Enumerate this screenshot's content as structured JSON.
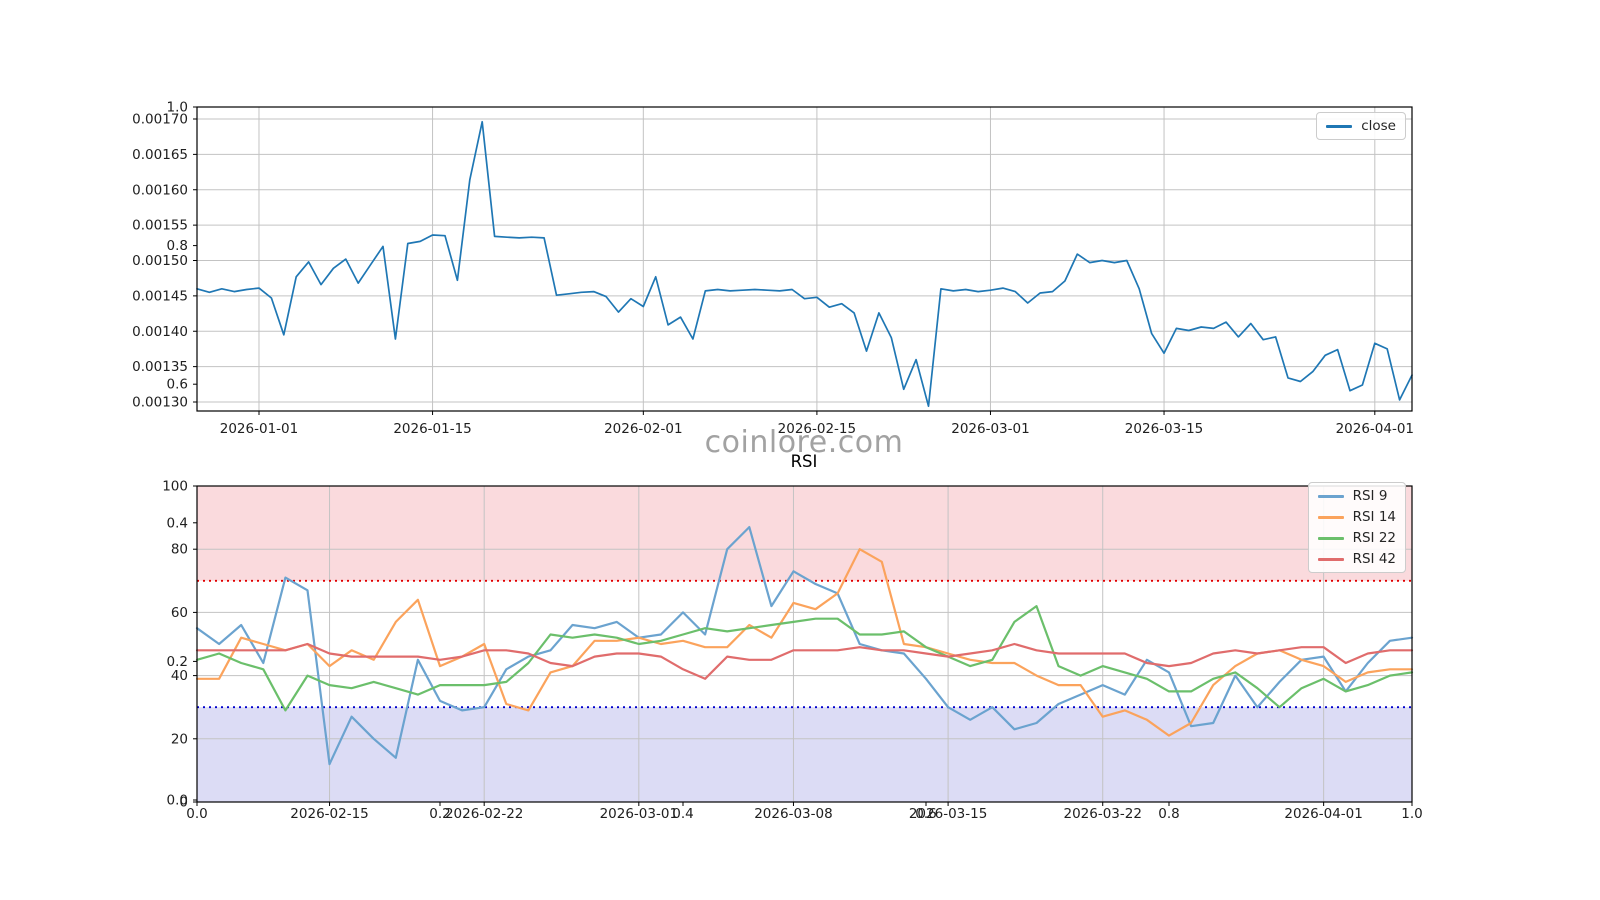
{
  "watermark": "coinlore.com",
  "overlay_axis": {
    "x_tick_labels": [
      "0.0",
      "0.2",
      "0.4",
      "0.6",
      "0.8",
      "1.0"
    ],
    "y_tick_labels": [
      "1.0",
      "0.8",
      "0.6",
      "0.4",
      "0.2",
      "0.0"
    ]
  },
  "chart_data": [
    {
      "type": "line",
      "title": "",
      "legend_position": "upper right",
      "grid": true,
      "x_range": [
        "2025-12-27",
        "2026-04-04"
      ],
      "x_tick_labels": [
        "2026-01-01",
        "2026-01-15",
        "2026-02-01",
        "2026-02-15",
        "2026-03-01",
        "2026-03-15",
        "2026-04-01"
      ],
      "x_tick_day_offsets": [
        5,
        19,
        36,
        50,
        64,
        78,
        95
      ],
      "y_tick_labels": [
        "0.00170",
        "0.00165",
        "0.00160",
        "0.00155",
        "0.00150",
        "0.00145",
        "0.00140",
        "0.00135",
        "0.00130"
      ],
      "y_tick_values": [
        170,
        165,
        160,
        155,
        150,
        145,
        140,
        135,
        130
      ],
      "ylim": [
        128.7,
        170.2
      ],
      "value_scale": 1e-05,
      "series": [
        {
          "name": "close",
          "color": "#1f77b4",
          "width": 1.7,
          "values": [
            146.0,
            145.5,
            146.0,
            145.6,
            145.9,
            146.1,
            144.7,
            139.5,
            147.7,
            149.8,
            146.6,
            148.9,
            150.2,
            146.8,
            149.4,
            152.0,
            138.9,
            152.4,
            152.7,
            153.6,
            153.5,
            147.2,
            161.4,
            169.6,
            153.4,
            153.3,
            153.2,
            153.3,
            153.2,
            145.1,
            145.3,
            145.5,
            145.6,
            144.9,
            142.7,
            144.6,
            143.5,
            147.7,
            140.9,
            142.0,
            138.9,
            145.7,
            145.9,
            145.7,
            145.8,
            145.9,
            145.8,
            145.7,
            145.9,
            144.6,
            144.8,
            143.4,
            143.9,
            142.6,
            137.2,
            142.6,
            139.1,
            131.8,
            136.0,
            129.4,
            146.0,
            145.7,
            145.9,
            145.6,
            145.8,
            146.1,
            145.6,
            144.0,
            145.4,
            145.6,
            147.1,
            150.9,
            149.7,
            150.0,
            149.7,
            150.0,
            146.0,
            139.7,
            136.9,
            140.4,
            140.1,
            140.6,
            140.4,
            141.3,
            139.2,
            141.1,
            138.8,
            139.2,
            133.4,
            132.9,
            134.3,
            136.6,
            137.4,
            131.6,
            132.4,
            138.3,
            137.5,
            130.3,
            133.8
          ]
        }
      ]
    },
    {
      "type": "line",
      "title": "RSI",
      "legend_position": "upper right",
      "grid": true,
      "x_range": [
        "2026-02-09",
        "2026-04-05"
      ],
      "x_tick_labels": [
        "2026-02-15",
        "2026-02-22",
        "2026-03-01",
        "2026-03-08",
        "2026-03-15",
        "2026-03-22",
        "2026-04-01"
      ],
      "x_tick_day_offsets": [
        6,
        13,
        20,
        27,
        34,
        41,
        51
      ],
      "y_tick_labels": [
        "100",
        "80",
        "60",
        "40",
        "20",
        "0"
      ],
      "y_tick_values": [
        100,
        80,
        60,
        40,
        20,
        0
      ],
      "ylim": [
        0,
        100
      ],
      "hlines": [
        {
          "y": 70,
          "color": "#e00000",
          "style": "dotted"
        },
        {
          "y": 30,
          "color": "#0000cc",
          "style": "dotted"
        }
      ],
      "bands": [
        {
          "from": 70,
          "to": 100,
          "color": "#fadadd",
          "meaning": "overbought"
        },
        {
          "from": 0,
          "to": 30,
          "color": "#dcdcf5",
          "meaning": "oversold"
        }
      ],
      "series": [
        {
          "name": "RSI 9",
          "color": "#6ba3cf",
          "width": 2.2,
          "values": [
            55,
            50,
            56,
            44,
            71,
            67,
            12,
            27,
            20,
            14,
            45,
            32,
            29,
            30,
            42,
            46,
            48,
            56,
            55,
            57,
            52,
            53,
            60,
            53,
            80,
            87,
            62,
            73,
            69,
            66,
            50,
            48,
            47,
            39,
            30,
            26,
            30,
            23,
            25,
            31,
            34,
            37,
            34,
            45,
            41,
            24,
            25,
            40,
            30,
            38,
            45,
            46,
            35,
            44,
            51,
            52
          ]
        },
        {
          "name": "RSI 14",
          "color": "#fba35c",
          "width": 2.2,
          "values": [
            39,
            39,
            52,
            50,
            48,
            50,
            43,
            48,
            45,
            57,
            64,
            43,
            46,
            50,
            31,
            29,
            41,
            43,
            51,
            51,
            52,
            50,
            51,
            49,
            49,
            56,
            52,
            63,
            61,
            66,
            80,
            76,
            50,
            49,
            47,
            45,
            44,
            44,
            40,
            37,
            37,
            27,
            29,
            26,
            21,
            25,
            37,
            43,
            47,
            48,
            45,
            43,
            38,
            41,
            42,
            42
          ]
        },
        {
          "name": "RSI 22",
          "color": "#6bbf6b",
          "width": 2.2,
          "values": [
            45,
            47,
            44,
            42,
            29,
            40,
            37,
            36,
            38,
            36,
            34,
            37,
            37,
            37,
            38,
            44,
            53,
            52,
            53,
            52,
            50,
            51,
            53,
            55,
            54,
            55,
            56,
            57,
            58,
            58,
            53,
            53,
            54,
            49,
            46,
            43,
            45,
            57,
            62,
            43,
            40,
            43,
            41,
            39,
            35,
            35,
            39,
            41,
            36,
            30,
            36,
            39,
            35,
            37,
            40,
            41
          ]
        },
        {
          "name": "RSI 42",
          "color": "#e06c6c",
          "width": 2.2,
          "values": [
            48,
            48,
            48,
            48,
            48,
            50,
            47,
            46,
            46,
            46,
            46,
            45,
            46,
            48,
            48,
            47,
            44,
            43,
            46,
            47,
            47,
            46,
            42,
            39,
            46,
            45,
            45,
            48,
            48,
            48,
            49,
            48,
            48,
            47,
            46,
            47,
            48,
            50,
            48,
            47,
            47,
            47,
            47,
            44,
            43,
            44,
            47,
            48,
            47,
            48,
            49,
            49,
            44,
            47,
            48,
            48
          ]
        }
      ]
    }
  ]
}
